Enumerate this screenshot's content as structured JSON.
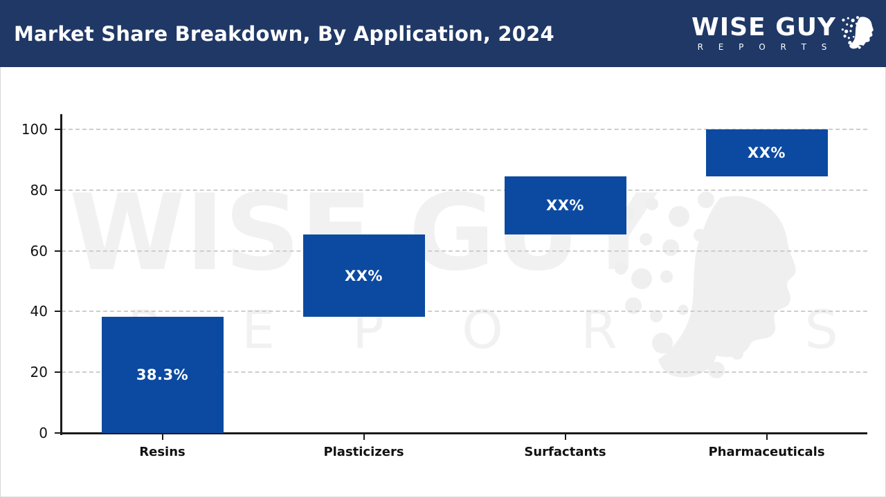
{
  "header": {
    "title": "Market Share Breakdown, By Application, 2024",
    "logo": {
      "line1": "WISE GUY",
      "line2": "R E P O R T S"
    }
  },
  "watermark": {
    "line1": "WISE GUY",
    "line2": "R E P O R T S"
  },
  "colors": {
    "header_bg": "#1f3866",
    "bar": "#0c4aa1",
    "grid": "#cdcdcd",
    "axis": "#1a1a1a",
    "watermark": "#f1f1f1",
    "panel_border": "#d6d6d6",
    "bar_label": "#ffffff"
  },
  "chart_data": {
    "type": "bar",
    "subtype": "floating-waterfall",
    "title": "Market Share Breakdown, By Application, 2024",
    "categories": [
      "Resins",
      "Plasticizers",
      "Surfactants",
      "Pharmaceuticals"
    ],
    "segments": [
      {
        "category": "Resins",
        "start": 0,
        "end": 38.3,
        "label": "38.3%"
      },
      {
        "category": "Plasticizers",
        "start": 38.3,
        "end": 65.3,
        "label": "XX%"
      },
      {
        "category": "Surfactants",
        "start": 65.3,
        "end": 84.6,
        "label": "XX%"
      },
      {
        "category": "Pharmaceuticals",
        "start": 84.6,
        "end": 100,
        "label": "XX%"
      }
    ],
    "yticks": [
      0,
      20,
      40,
      60,
      80,
      100
    ],
    "ylim": [
      0,
      105
    ],
    "xlabel": "",
    "ylabel": "",
    "grid": "horizontal-dashed",
    "legend": "none"
  }
}
